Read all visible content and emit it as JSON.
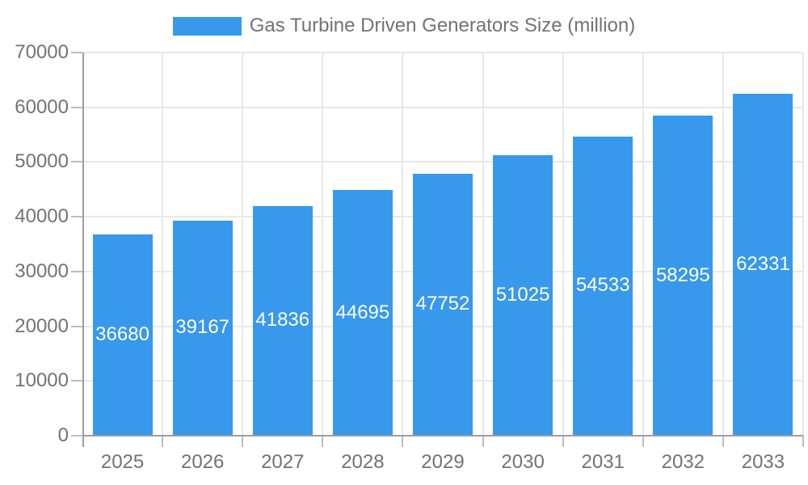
{
  "legend": {
    "label": "Gas Turbine Driven Generators Size (million)"
  },
  "chart_data": {
    "type": "bar",
    "title": "Gas Turbine Driven Generators Size (million)",
    "categories": [
      "2025",
      "2026",
      "2027",
      "2028",
      "2029",
      "2030",
      "2031",
      "2032",
      "2033"
    ],
    "values": [
      36680,
      39167,
      41836,
      44695,
      47752,
      51025,
      54533,
      58295,
      62331
    ],
    "xlabel": "",
    "ylabel": "",
    "ylim": [
      0,
      70000
    ],
    "ytick_step": 10000,
    "ytick_labels": [
      "0",
      "10000",
      "20000",
      "30000",
      "40000",
      "50000",
      "60000",
      "70000"
    ],
    "grid": true,
    "legend_position": "top-center",
    "bar_color": "#3898ec",
    "value_label_color": "#ffffff",
    "axis_text_color": "#737373",
    "grid_color": "#e8e8e8",
    "axis_line_color": "#9e9e9e"
  }
}
